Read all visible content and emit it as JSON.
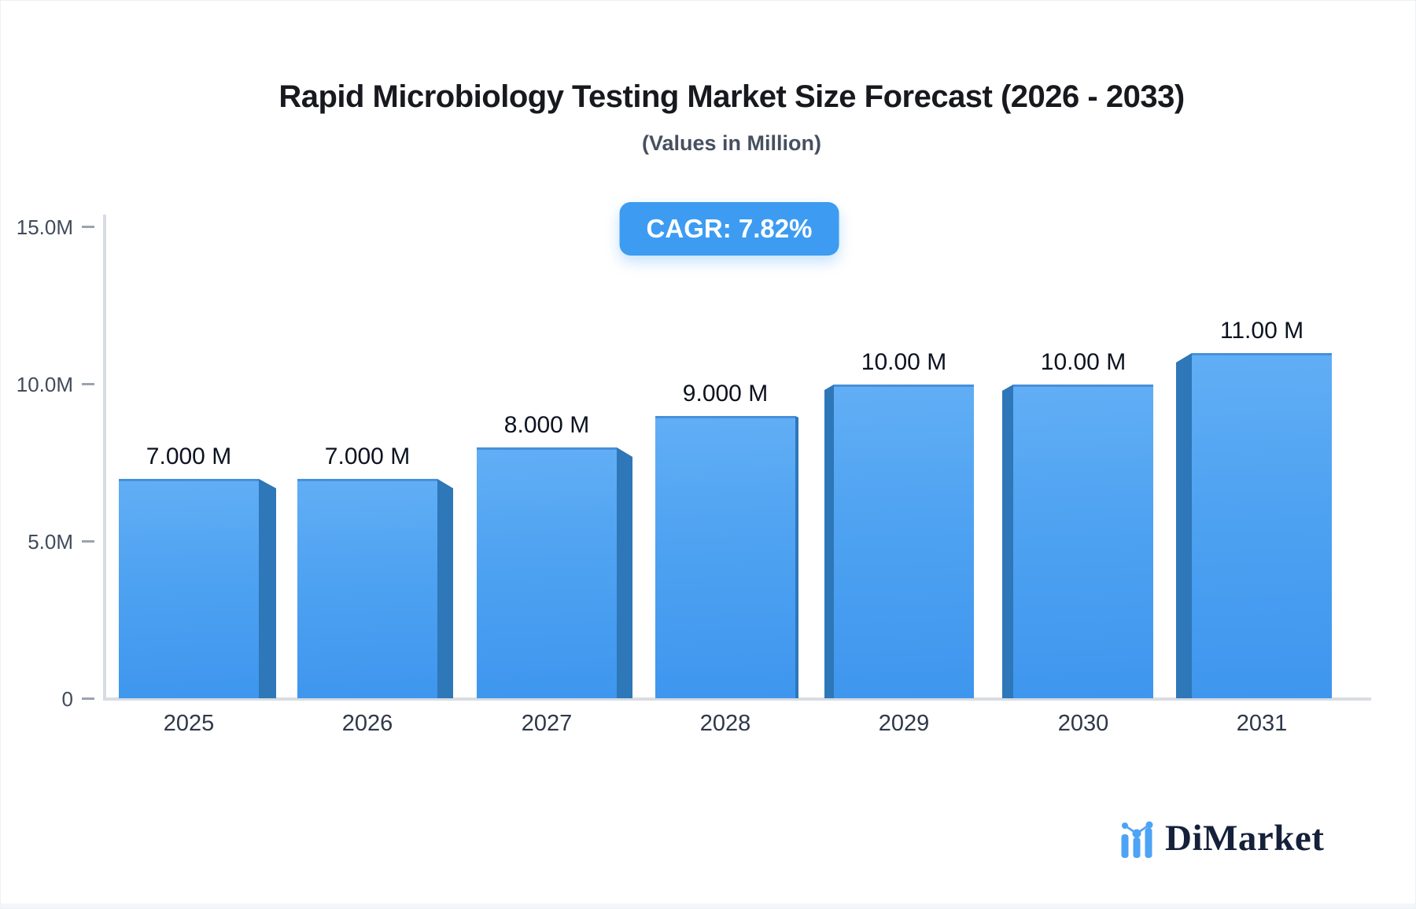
{
  "header": {
    "title": "Rapid Microbiology Testing Market Size Forecast (2026 - 2033)",
    "subtitle": "(Values in Million)",
    "cagr_label": "CAGR: 7.82%"
  },
  "chart_data": {
    "type": "bar",
    "title": "Rapid Microbiology Testing Market Size Forecast (2026 - 2033)",
    "subtitle": "(Values in Million)",
    "cagr_percent": 7.82,
    "unit": "Million",
    "categories": [
      "2025",
      "2026",
      "2027",
      "2028",
      "2029",
      "2030",
      "2031"
    ],
    "values": [
      7,
      7,
      8,
      9,
      10,
      10,
      11
    ],
    "value_labels": [
      "7.000 M",
      "7.000 M",
      "8.000 M",
      "9.000 M",
      "10.00 M",
      "10.00 M",
      "11.00 M"
    ],
    "yticks": [
      {
        "label": "15.0M",
        "value": 15
      },
      {
        "label": "10.0M",
        "value": 10
      },
      {
        "label": "5.0M",
        "value": 5
      },
      {
        "label": "0",
        "value": 0
      }
    ],
    "ylim": [
      0,
      15
    ],
    "xlabel": "",
    "ylabel": "",
    "grid": false,
    "legend": false,
    "style_3d": true,
    "bar_color": "#459ff0",
    "bar_side_color": "#2e77b8"
  },
  "branding": {
    "logo_text": "DiMarket",
    "logo_icon": "mini-bar-line-chart-icon",
    "logo_icon_color": "#4da3f5",
    "logo_text_color": "#15213a"
  },
  "colors": {
    "badge_background": "#3d9cf1",
    "badge_text": "#ffffff",
    "axis_line": "#d6dae1",
    "tick_text": "#414b5a",
    "category_text": "#2e3848",
    "value_text": "#0c1320",
    "background": "#ffffff"
  }
}
